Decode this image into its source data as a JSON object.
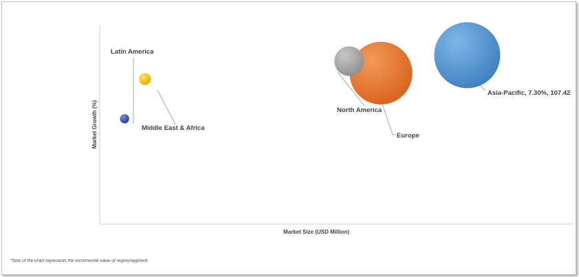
{
  "chart_data": {
    "type": "scatter",
    "xlabel": "Market Size (USD Million)",
    "ylabel": "Market Growth (%)",
    "footnote": "*Size of the chart represents the incremental value of region/segment",
    "grid": false,
    "points": [
      {
        "label": "Latin America",
        "x": 0.08,
        "y": 0.73,
        "size": 0.18,
        "color": "#f3c219"
      },
      {
        "label": "Middle East & Africa",
        "x": 0.035,
        "y": 0.53,
        "size": 0.14,
        "color": "#3d5fba"
      },
      {
        "label": "North America",
        "x": 0.53,
        "y": 0.82,
        "size": 0.45,
        "color": "#a8a8a8"
      },
      {
        "label": "Europe",
        "x": 0.6,
        "y": 0.76,
        "size": 0.95,
        "color": "#ed7b31"
      },
      {
        "label": "Asia-Pacific, 7.30%, 107.42",
        "x": 0.79,
        "y": 0.85,
        "size": 1.0,
        "color": "#5b9bd5"
      }
    ]
  }
}
